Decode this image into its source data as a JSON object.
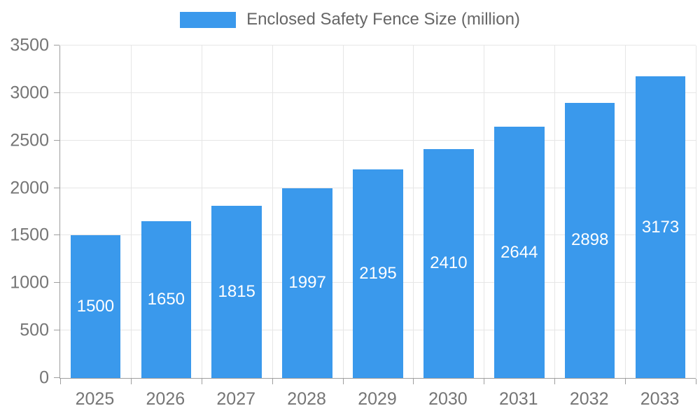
{
  "chart_data": {
    "type": "bar",
    "title": "Enclosed Safety Fence Size (million)",
    "legend": [
      "Enclosed Safety Fence Size (million)"
    ],
    "legend_position": "top",
    "categories": [
      "2025",
      "2026",
      "2027",
      "2028",
      "2029",
      "2030",
      "2031",
      "2032",
      "2033"
    ],
    "values": [
      1500,
      1650,
      1815,
      1997,
      2195,
      2410,
      2644,
      2898,
      3173
    ],
    "xlabel": "",
    "ylabel": "",
    "ylim": [
      0,
      3500
    ],
    "yticks": [
      0,
      500,
      1000,
      1500,
      2000,
      2500,
      3000,
      3500
    ],
    "grid": true,
    "bar_labels_visible": true
  },
  "colors": {
    "bar": "#3a99ec",
    "grid": "#e6e6e6",
    "axis": "#9e9e9e",
    "tick_text": "#757575",
    "legend_text": "#666666",
    "bar_label": "#ffffff",
    "background": "#ffffff"
  }
}
